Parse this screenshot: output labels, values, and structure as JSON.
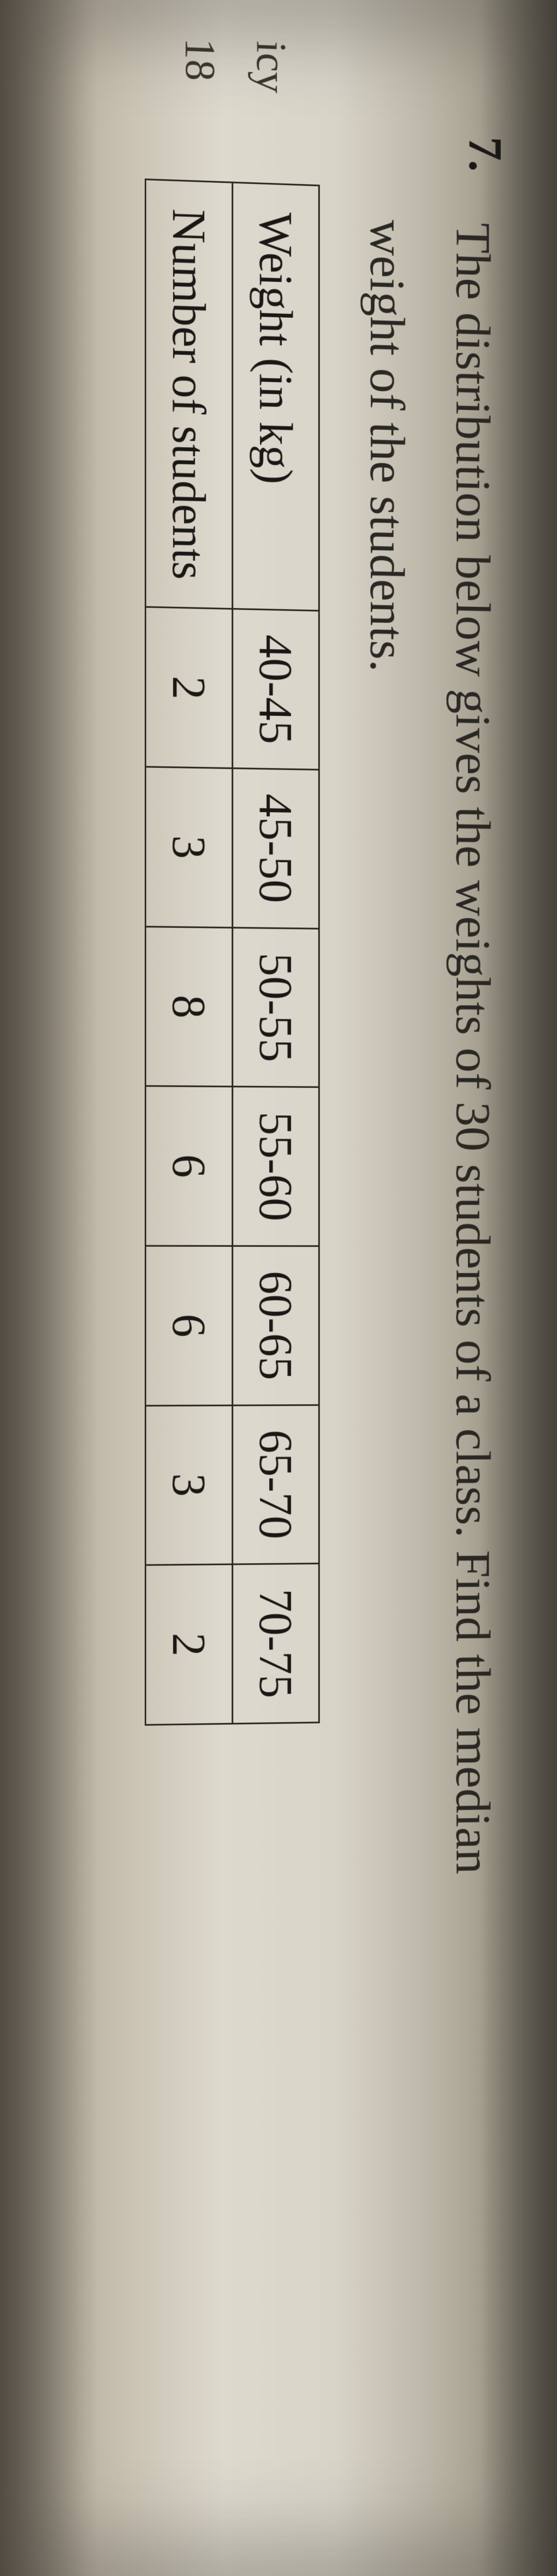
{
  "question": {
    "number": "7.",
    "line1": "The distribution below gives the weights of 30 students of a class. Find the median",
    "line2": "weight of the students."
  },
  "left_margin": {
    "item1": "icy",
    "item2": "18"
  },
  "table": {
    "type": "table",
    "border_color": "#2a2620",
    "text_color": "#1a1816",
    "font_size_pt": 64,
    "columns": [
      "label",
      "40-45",
      "45-50",
      "50-55",
      "55-60",
      "60-65",
      "65-70",
      "70-75"
    ],
    "rows": [
      {
        "label": "Weight (in kg)",
        "cells": [
          "40-45",
          "45-50",
          "50-55",
          "55-60",
          "60-65",
          "65-70",
          "70-75"
        ]
      },
      {
        "label": "Number of students",
        "cells": [
          "2",
          "3",
          "8",
          "6",
          "6",
          "3",
          "2"
        ]
      }
    ]
  },
  "styling": {
    "background_gradient": [
      "#7a7568",
      "#d8d4c8",
      "#908878"
    ],
    "font_family": "Times New Roman",
    "question_fontsize": 92,
    "rotation_deg": 90
  }
}
